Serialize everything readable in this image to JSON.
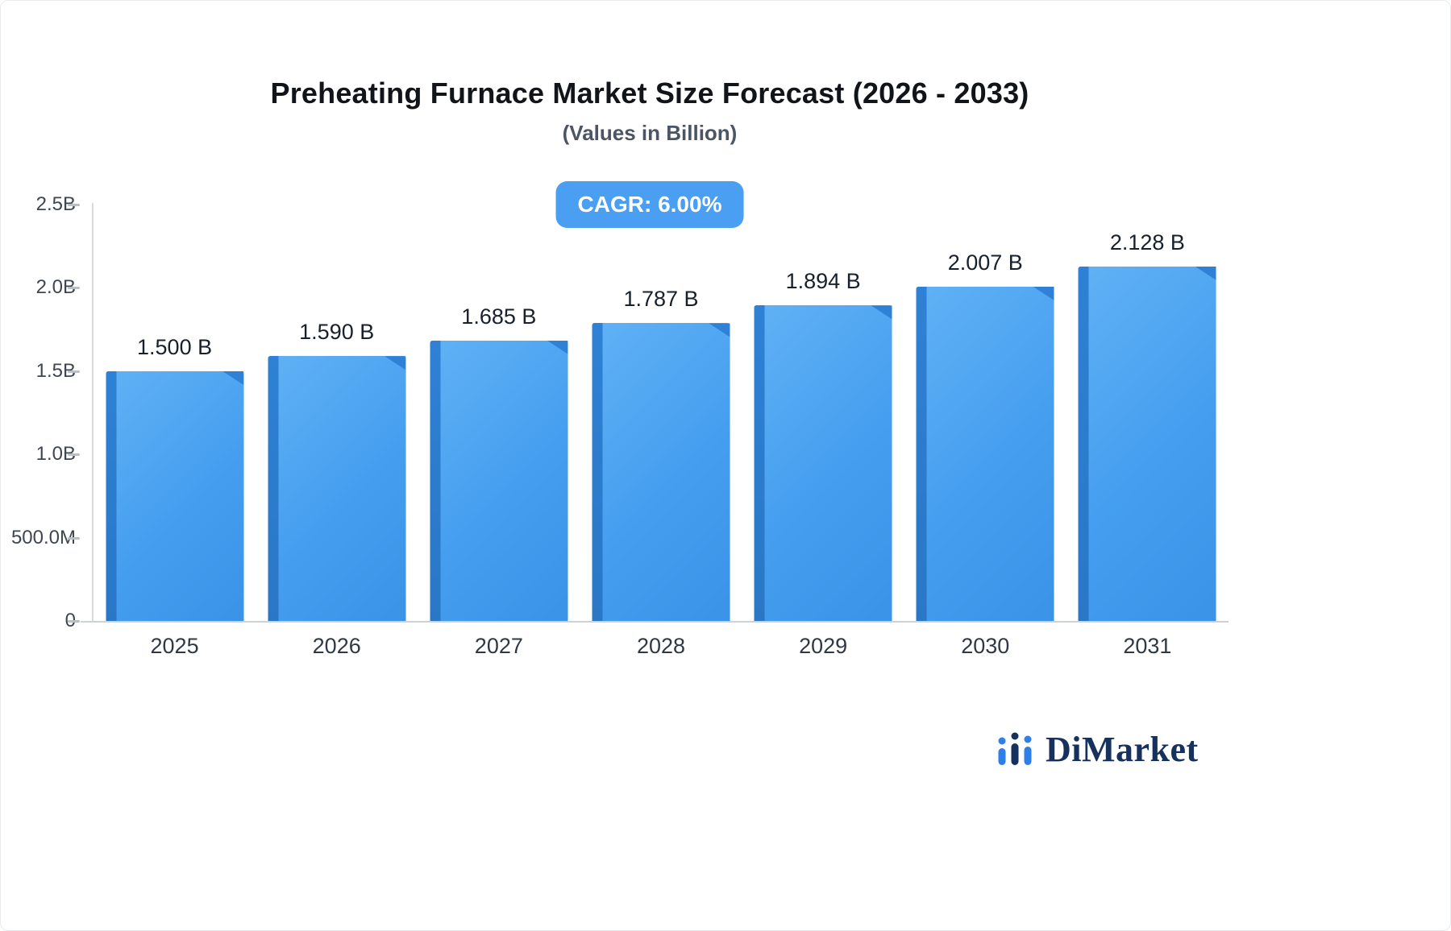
{
  "header": {
    "title": "Preheating Furnace Market Size Forecast (2026 - 2033)",
    "subtitle": "(Values in Billion)",
    "cagr_badge": "CAGR: 6.00%"
  },
  "chart_data": {
    "type": "bar",
    "categories": [
      "2025",
      "2026",
      "2027",
      "2028",
      "2029",
      "2030",
      "2031"
    ],
    "values": [
      1.5,
      1.59,
      1.685,
      1.787,
      1.894,
      2.007,
      2.128
    ],
    "value_labels": [
      "1.500 B",
      "1.590 B",
      "1.685 B",
      "1.787 B",
      "1.894 B",
      "2.007 B",
      "2.128 B"
    ],
    "title": "Preheating Furnace Market Size Forecast (2026 - 2033)",
    "subtitle": "(Values in Billion)",
    "annotation": "CAGR: 6.00%",
    "xlabel": "",
    "ylabel": "",
    "ylim": [
      0,
      2.5
    ],
    "yticks": [
      {
        "value": 0,
        "label": "0"
      },
      {
        "value": 0.5,
        "label": "500.0M"
      },
      {
        "value": 1.0,
        "label": "1.0B"
      },
      {
        "value": 1.5,
        "label": "1.5B"
      },
      {
        "value": 2.0,
        "label": "2.0B"
      },
      {
        "value": 2.5,
        "label": "2.5B"
      }
    ],
    "grid": false,
    "legend": false,
    "bar_color": "#459EEF",
    "bar_edge_color": "#2E81D4",
    "badge_color": "#4A9FF3"
  },
  "footer": {
    "brand": "DiMarket",
    "brand_icon": "bar-chart-logo-icon",
    "brand_color": "#16325C",
    "icon_color": "#2E7FE9"
  }
}
